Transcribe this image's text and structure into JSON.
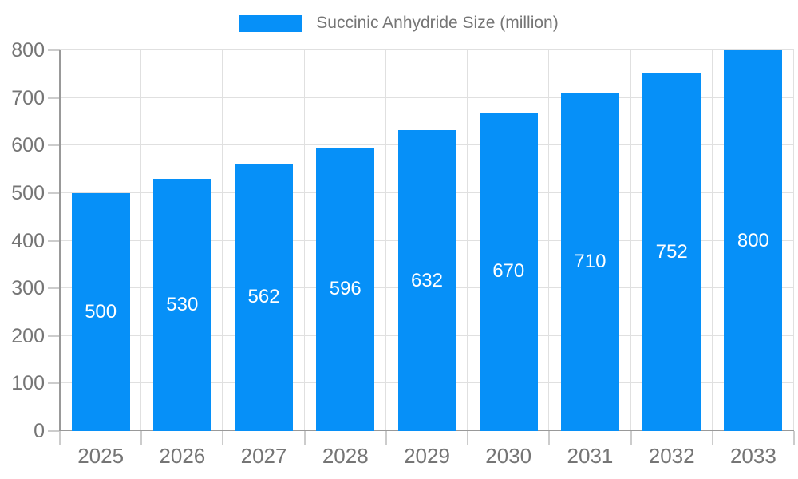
{
  "legend": {
    "label": "Succinic Anhydride Size (million)"
  },
  "chart_data": {
    "type": "bar",
    "title": "Succinic Anhydride Size (million)",
    "categories": [
      "2025",
      "2026",
      "2027",
      "2028",
      "2029",
      "2030",
      "2031",
      "2032",
      "2033"
    ],
    "values": [
      500,
      530,
      562,
      596,
      632,
      670,
      710,
      752,
      800
    ],
    "xlabel": "",
    "ylabel": "",
    "ylim": [
      0,
      800
    ],
    "ytick_step": 100,
    "grid": true,
    "legend_position": "top-center",
    "bar_label_position": "inside-center",
    "colors": {
      "bar": "#0690F8",
      "grid": "#E0E0E0",
      "axis": "#999999",
      "tick": "#CCCCCC",
      "text": "#757575",
      "bar_label": "#FFFFFF",
      "background": "#FFFFFF"
    }
  }
}
